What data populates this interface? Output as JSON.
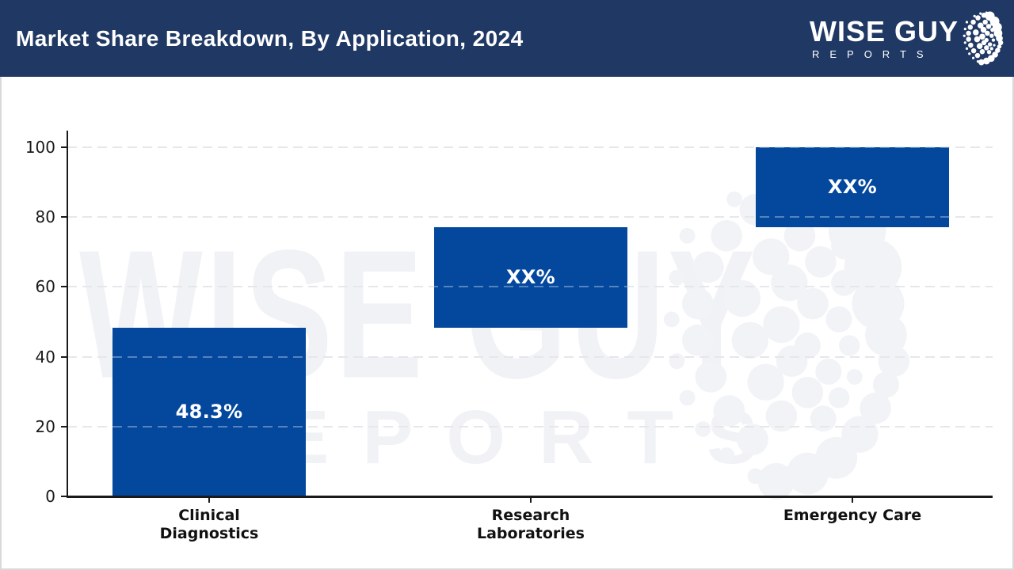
{
  "header": {
    "title": "Market Share Breakdown, By Application, 2024",
    "logo": {
      "primary": "WISE GUY",
      "secondary": "REPORTS"
    }
  },
  "watermark": {
    "line1": "WISE GUY",
    "line2": "REPORTS"
  },
  "colors": {
    "header_bg": "#1F3864",
    "bar_fill": "#04489E",
    "axis": "#1a1a1a",
    "gridline": "#d9dce1",
    "bar_label_text": "#ffffff",
    "watermark_gray": "#f1f2f6"
  },
  "chart_data": {
    "type": "bar",
    "subtype": "waterfall",
    "title": "Market Share Breakdown, By Application, 2024",
    "categories": [
      "Clinical\nDiagnostics",
      "Research\nLaboratories",
      "Emergency Care"
    ],
    "segments": [
      {
        "category": "Clinical Diagnostics",
        "start": 0,
        "end": 48.3,
        "label": "48.3%"
      },
      {
        "category": "Research Laboratories",
        "start": 48.3,
        "end": 77.2,
        "label": "XX%"
      },
      {
        "category": "Emergency Care",
        "start": 77.2,
        "end": 100,
        "label": "XX%"
      }
    ],
    "xlabel": "",
    "ylabel": "",
    "ylim": [
      0,
      100
    ],
    "yticks": [
      0,
      20,
      40,
      60,
      80,
      100
    ],
    "grid": "horizontal-dashed",
    "legend": "none"
  }
}
